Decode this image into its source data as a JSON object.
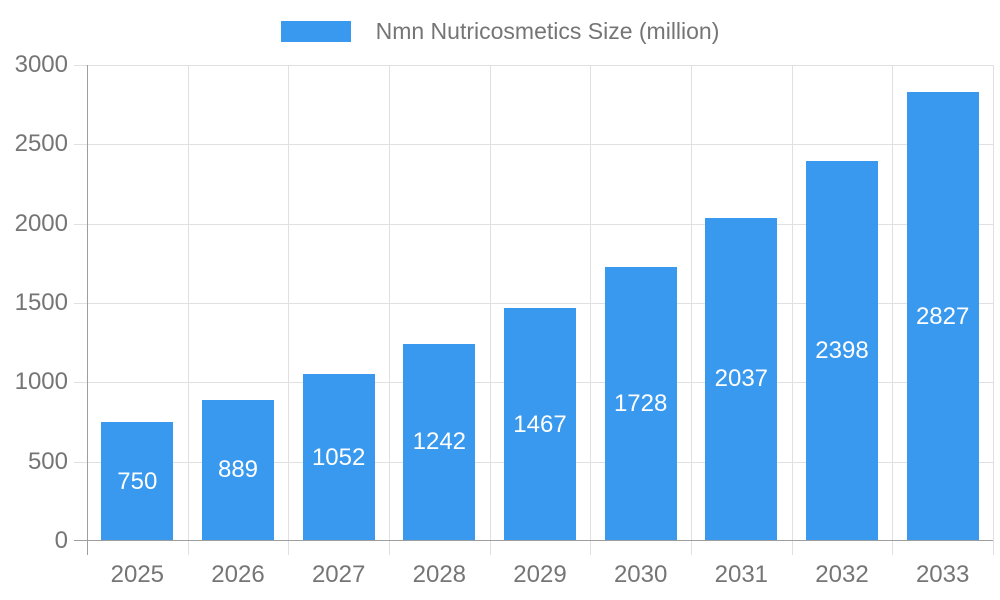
{
  "legend": {
    "label": "Nmn Nutricosmetics Size (million)"
  },
  "chart_data": {
    "type": "bar",
    "title": "Nmn Nutricosmetics Size (million)",
    "series_name": "Nmn Nutricosmetics Size (million)",
    "categories": [
      "2025",
      "2026",
      "2027",
      "2028",
      "2029",
      "2030",
      "2031",
      "2032",
      "2033"
    ],
    "values": [
      750,
      889,
      1052,
      1242,
      1467,
      1728,
      2037,
      2398,
      2827
    ],
    "xlabel": "",
    "ylabel": "",
    "ylim": [
      0,
      3000
    ],
    "yticks": [
      0,
      500,
      1000,
      1500,
      2000,
      2500,
      3000
    ],
    "grid": true,
    "legend_position": "top",
    "colors": {
      "bar": "#3999EE",
      "value_label": "#FFFFFF",
      "axis_text": "#757575",
      "axis_line": "#9E9E9E",
      "gridline": "#E0E0E0",
      "background": "#FFFFFF"
    }
  }
}
